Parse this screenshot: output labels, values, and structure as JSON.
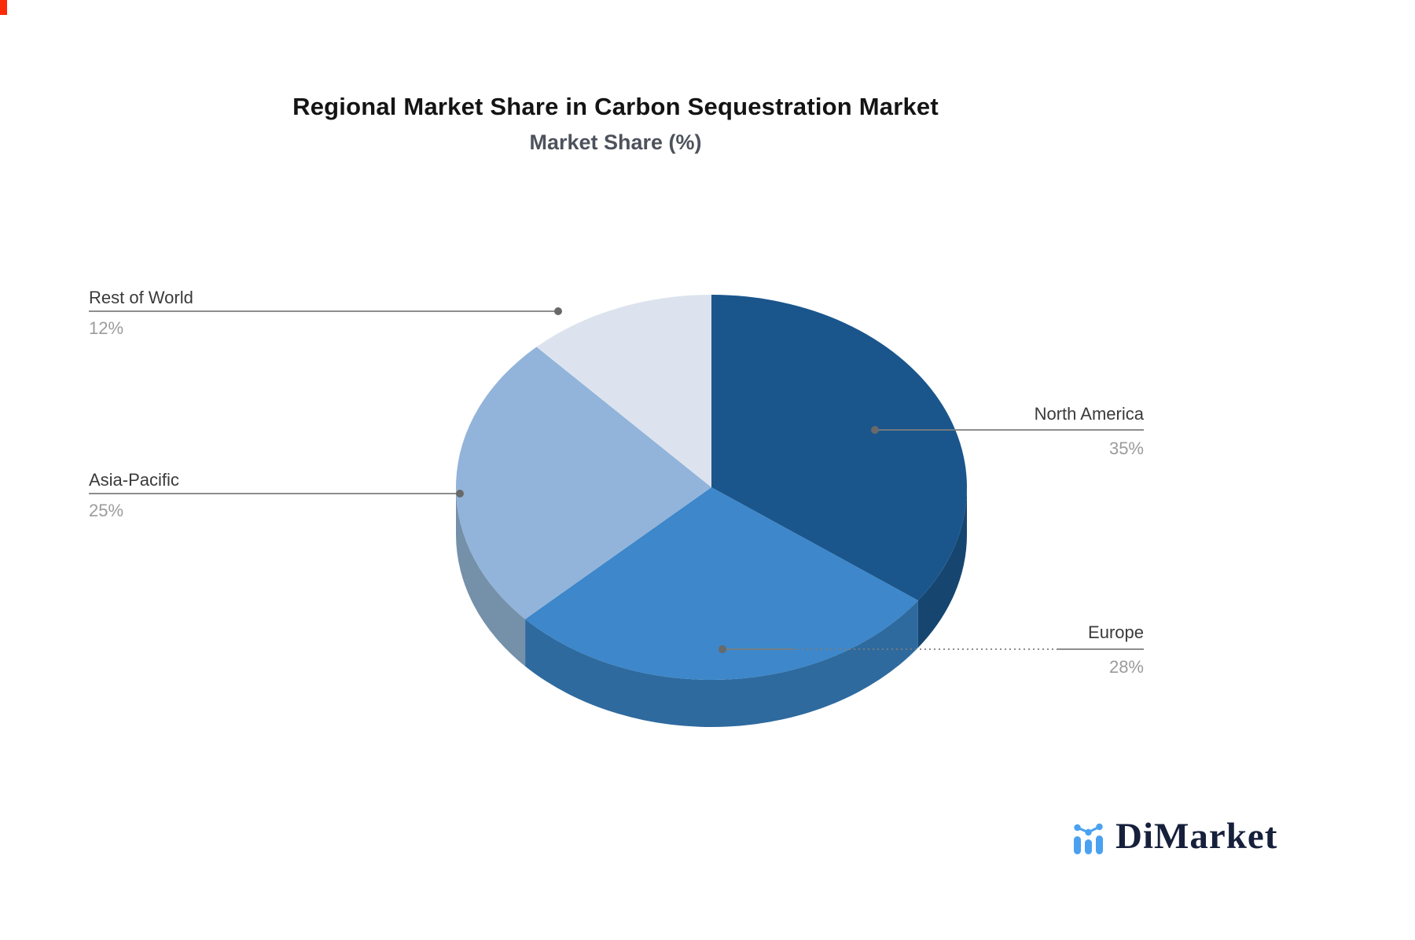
{
  "header": {
    "title": "Regional Market Share in Carbon Sequestration Market",
    "subtitle": "Market Share (%)",
    "title_color": "#141414",
    "subtitle_color": "#4d525c"
  },
  "chart_data": {
    "type": "pie",
    "style": "3d",
    "title": "Regional Market Share in Carbon Sequestration Market",
    "subtitle": "Market Share (%)",
    "unit": "%",
    "direction": "clockwise",
    "start_angle": "12-o-clock",
    "legend_position": "callout-labels",
    "slices": [
      {
        "label": "North America",
        "value": 35,
        "value_text": "35%",
        "color": "#1a568c",
        "side_color": "#164570"
      },
      {
        "label": "Europe",
        "value": 28,
        "value_text": "28%",
        "color": "#3d87ca",
        "side_color": "#2e6a9e"
      },
      {
        "label": "Asia-Pacific",
        "value": 25,
        "value_text": "25%",
        "color": "#92b4da",
        "side_color": "#7590a9"
      },
      {
        "label": "Rest of World",
        "value": 12,
        "value_text": "12%",
        "color": "#dde3ee",
        "side_color": "#b6c1d2"
      }
    ],
    "callouts": [
      {
        "label": "Rest of World",
        "value_text": "12%",
        "side": "left"
      },
      {
        "label": "Asia-Pacific",
        "value_text": "25%",
        "side": "left"
      },
      {
        "label": "North America",
        "value_text": "35%",
        "side": "right"
      },
      {
        "label": "Europe",
        "value_text": "28%",
        "side": "right"
      }
    ],
    "leader_line_color": "#7d7d7d",
    "leader_dot_color": "#696969",
    "label_color": "#3a3a3a",
    "value_color": "#9b9b9b"
  },
  "brand": {
    "name": "DiMarket",
    "icon": "bar-chart-trend-icon",
    "icon_color": "#4aa1f1",
    "text_color": "#16203b"
  }
}
